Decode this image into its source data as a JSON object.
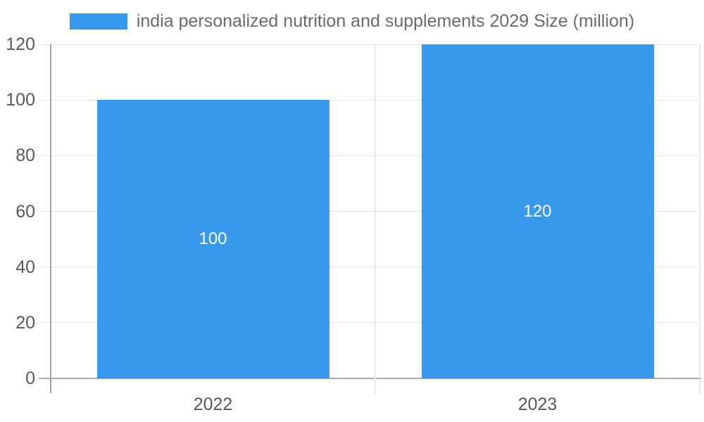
{
  "chart_data": {
    "type": "bar",
    "categories": [
      "2022",
      "2023"
    ],
    "series": [
      {
        "name": "india personalized nutrition and supplements 2029 Size (million)",
        "values": [
          100,
          120
        ]
      }
    ],
    "title": "",
    "xlabel": "",
    "ylabel": "",
    "ylim": [
      0,
      120
    ],
    "yticks": [
      0,
      20,
      40,
      60,
      80,
      100,
      120
    ],
    "grid": true,
    "legend_position": "top",
    "bar_color": "#3899EC",
    "value_label_color": "#FFFFFF"
  },
  "legend": {
    "label": "india personalized nutrition and supplements 2029 Size (million)"
  },
  "colors": {
    "bar": "#3899EC",
    "gridline": "#E6E6E6",
    "baseline": "#ACACAC",
    "axis_line": "#9E9E9E",
    "tick_text": "#595959",
    "legend_text": "#6B6B6B",
    "value_text": "#FFFFFF",
    "background": "#FFFFFF"
  }
}
